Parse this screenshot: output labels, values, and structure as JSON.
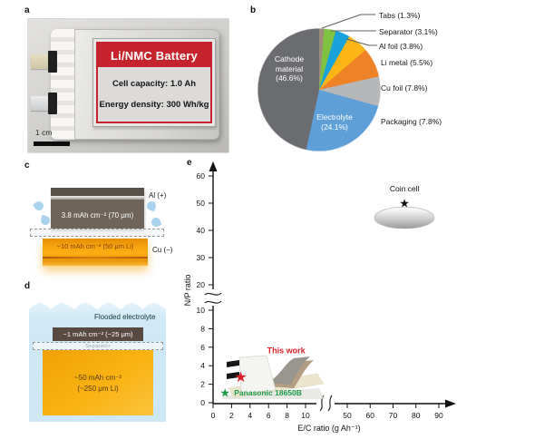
{
  "panels": {
    "a": {
      "label": "a",
      "battery_title": "Li/NMC Battery",
      "spec_line1": "Cell capacity: 1.0 Ah",
      "spec_line2": "Energy density: 300 Wh/kg",
      "scale_bar_label": "1 cm"
    },
    "b": {
      "label": "b"
    },
    "c": {
      "label": "c",
      "cathode_text": "3.8 mAh cm⁻² (70 μm)",
      "al_electrode_label": "Al (+)",
      "anode_text": "~10 mAh cm⁻² (50 μm Li)",
      "cu_electrode_label": "Cu (−)"
    },
    "d": {
      "label": "d",
      "electrolyte_label": "Flooded electrolyte",
      "cathode_text": "~1 mAh cm⁻² (~25 μm)",
      "separator_label": "Separator",
      "anode_text_line1": "~50 mAh cm⁻²",
      "anode_text_line2": "(~250 μm Li)"
    },
    "e": {
      "label": "e"
    }
  },
  "chart_data": [
    {
      "type": "pie",
      "title": "",
      "start": "top",
      "direction": "clockwise",
      "slices": [
        {
          "label": "Tabs",
          "value": 1.3,
          "color": "#9d8b7c"
        },
        {
          "label": "Separator",
          "value": 3.1,
          "color": "#7fc242"
        },
        {
          "label": "Al foil",
          "value": 3.8,
          "color": "#17a2db"
        },
        {
          "label": "Li metal",
          "value": 5.5,
          "color": "#fbb515"
        },
        {
          "label": "Cu foil",
          "value": 7.8,
          "color": "#ef8126"
        },
        {
          "label": "Packaging",
          "value": 7.8,
          "color": "#b5b7b9"
        },
        {
          "label": "Electrolyte",
          "value": 24.1,
          "color": "#5d9fd6"
        },
        {
          "label": "Cathode material",
          "value": 46.6,
          "color": "#6b6c70"
        }
      ],
      "inside_label_slices": [
        "Cathode material",
        "Electrolyte"
      ],
      "callout_label_slices": [
        "Tabs",
        "Separator",
        "Al foil",
        "Li metal",
        "Cu foil",
        "Packaging"
      ]
    },
    {
      "type": "scatter",
      "xlabel": "E/C ratio (g Ah⁻¹)",
      "ylabel": "N/P ratio",
      "x_axis": {
        "ticks_low": [
          0,
          2,
          4,
          6,
          8,
          10
        ],
        "ticks_high": [
          50,
          60,
          70,
          80,
          90
        ],
        "break": true
      },
      "y_axis": {
        "ticks_low": [
          0,
          2,
          4,
          6,
          8,
          10
        ],
        "ticks_high": [
          20,
          30,
          40,
          50,
          60
        ],
        "break": true
      },
      "legend_position": "none",
      "grid": false,
      "points": [
        {
          "label": "Coin cell",
          "x": 75,
          "y": 50,
          "marker": "star",
          "color": "#111111"
        },
        {
          "label": "This work",
          "x": 3,
          "y": 2.7,
          "marker": "star",
          "color": "#d92027"
        },
        {
          "label": "Panasonic 18650B",
          "x": 1.3,
          "y": 1.1,
          "marker": "star",
          "color": "#1b9c49"
        }
      ]
    }
  ],
  "colors": {
    "battery_label_red": "#c5242e",
    "water_blue": "#cde7f5",
    "li_orange": "#f7a50f",
    "cathode_block_brown": "#6e6459",
    "this_work_red": "#d92027",
    "panasonic_green": "#1b9c49"
  }
}
